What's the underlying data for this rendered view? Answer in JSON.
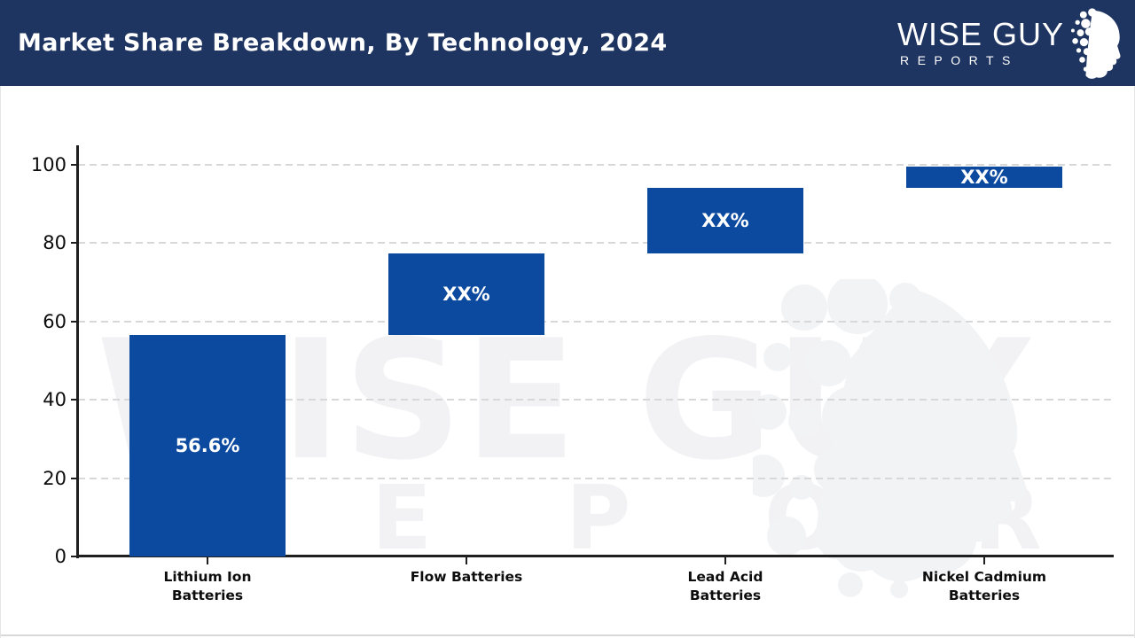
{
  "header": {
    "title": "Market Share Breakdown, By Technology, 2024",
    "bg_color": "#1e3461",
    "brand": {
      "name": "WISE GUY",
      "sub": "REPORTS"
    }
  },
  "watermark": {
    "line1": "WISE GUY",
    "line2": "R E P O R T S"
  },
  "chart_data": {
    "type": "bar",
    "subtype": "waterfall",
    "title": "Market Share Breakdown, By Technology, 2024",
    "xlabel": "",
    "ylabel": "",
    "categories": [
      "Lithium Ion Batteries",
      "Flow Batteries",
      "Lead Acid Batteries",
      "Nickel Cadmium Batteries"
    ],
    "category_label_lines": [
      [
        "Lithium Ion",
        "Batteries"
      ],
      [
        "Flow Batteries"
      ],
      [
        "Lead Acid",
        "Batteries"
      ],
      [
        "Nickel Cadmium",
        "Batteries"
      ]
    ],
    "segments": [
      {
        "category": "Lithium Ion Batteries",
        "start": 0,
        "end": 56.6,
        "label": "56.6%",
        "masked": false
      },
      {
        "category": "Flow Batteries",
        "start": 56.6,
        "end": 77.4,
        "label": "XX%",
        "masked": true
      },
      {
        "category": "Lead Acid Batteries",
        "start": 77.4,
        "end": 94.1,
        "label": "XX%",
        "masked": true
      },
      {
        "category": "Nickel Cadmium Batteries",
        "start": 94.1,
        "end": 99.6,
        "label": "XX%",
        "masked": true
      }
    ],
    "yticks": [
      0,
      20,
      40,
      60,
      80,
      100
    ],
    "ylim": [
      0,
      105
    ],
    "grid": {
      "axis": "y",
      "style": "dashed",
      "color": "#d8d8d8"
    },
    "legend": "none",
    "bar_color": "#0c4aa0",
    "bar_label_color": "#ffffff",
    "axis_color": "#1f1f1f"
  }
}
